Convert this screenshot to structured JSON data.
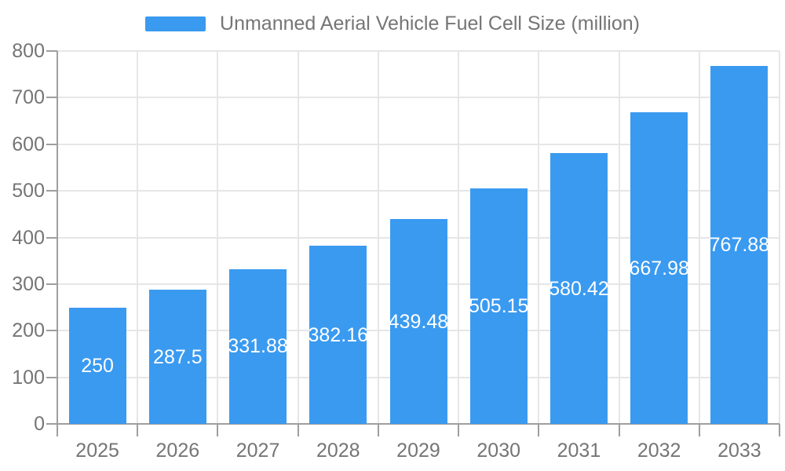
{
  "chart_data": {
    "type": "bar",
    "title": "Unmanned Aerial Vehicle Fuel Cell Size (million)",
    "legend": "Unmanned Aerial Vehicle Fuel Cell Size (million)",
    "legend_position": "top-center",
    "categories": [
      "2025",
      "2026",
      "2027",
      "2028",
      "2029",
      "2030",
      "2031",
      "2032",
      "2033"
    ],
    "values": [
      250,
      287.5,
      331.88,
      382.16,
      439.48,
      505.15,
      580.42,
      667.98,
      767.88
    ],
    "value_labels": [
      "250",
      "287.5",
      "331.88",
      "382.16",
      "439.48",
      "505.15",
      "580.42",
      "667.98",
      "767.88"
    ],
    "xlabel": "",
    "ylabel": "",
    "ylim": [
      0,
      800
    ],
    "y_ticks": [
      0,
      100,
      200,
      300,
      400,
      500,
      600,
      700,
      800
    ],
    "grid": true,
    "colors": {
      "bar": "#3a9af0",
      "axis": "#9e9e9e",
      "grid": "#e6e6e6",
      "tick_label": "#757575",
      "value_label": "#ffffff",
      "background": "#ffffff"
    }
  }
}
